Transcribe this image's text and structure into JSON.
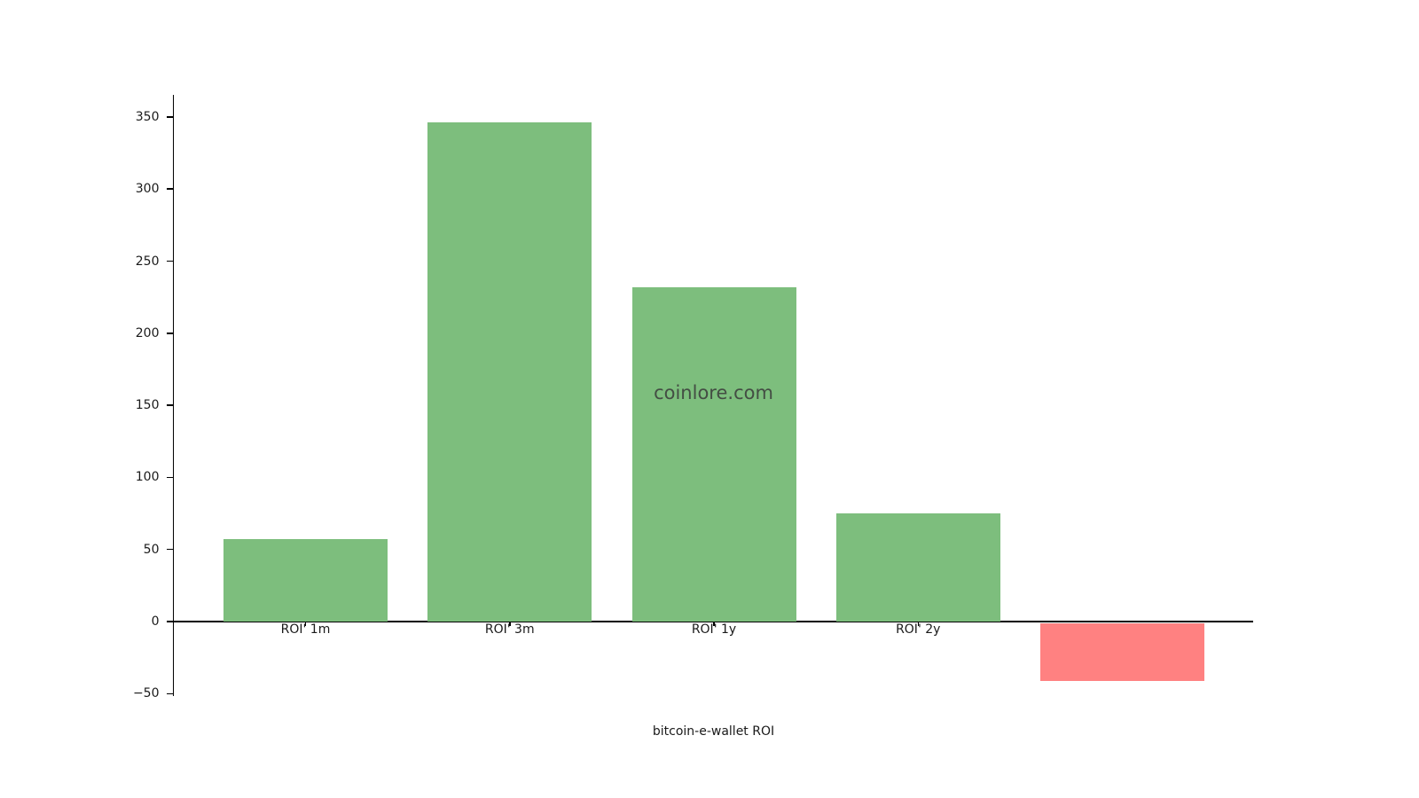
{
  "title": {
    "text": "bitcoin-e-wallet ROI"
  },
  "watermark": {
    "text": "coinlore.com"
  },
  "chart_data": {
    "type": "bar",
    "title": "bitcoin-e-wallet ROI",
    "categories": [
      "ROI' 1m",
      "ROI' 3m",
      "ROI' 1y",
      "ROI' 2y",
      ""
    ],
    "values": [
      57,
      346,
      232,
      75,
      -41
    ],
    "yticks": [
      350,
      300,
      250,
      200,
      150,
      100,
      50,
      0,
      -50
    ],
    "ytick_labels": [
      "350",
      "300",
      "250",
      "200",
      "150",
      "100",
      "50",
      "0",
      "−50"
    ],
    "ylim": [
      -52,
      365
    ],
    "xlabel": "",
    "ylabel": "",
    "grid": false,
    "legend_position": "none",
    "bar_positive_color": "#7dbe7d",
    "bar_negative_color": "#ff8181",
    "axis_color": "#000000",
    "text_color": "#1a1a1a",
    "watermark_color": "#3a3a3a"
  }
}
